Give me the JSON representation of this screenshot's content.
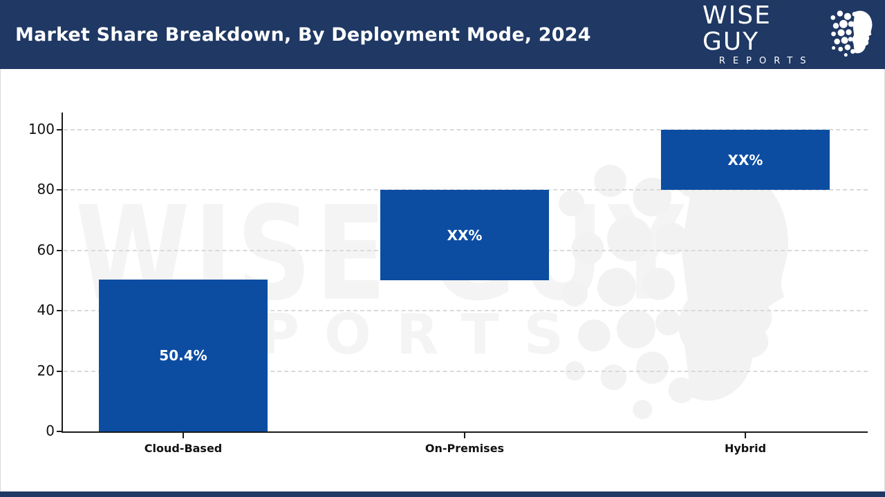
{
  "header": {
    "title": "Market Share Breakdown, By Deployment Mode, 2024",
    "logo": {
      "line1": "WISE GUY",
      "line2": "REPORTS",
      "face_icon": "dotted-head-profile"
    }
  },
  "watermark": {
    "line1": "WISE GUY",
    "line2": "REPORTS",
    "face_icon": "dotted-head-profile"
  },
  "chart_data": {
    "type": "bar",
    "variant": "floating-segment-waterfall",
    "title": "Market Share Breakdown, By Deployment Mode, 2024",
    "categories": [
      "Cloud-Based",
      "On-Premises",
      "Hybrid"
    ],
    "segments": [
      {
        "category": "Cloud-Based",
        "start": 0,
        "end": 50.4,
        "label": "50.4%"
      },
      {
        "category": "On-Premises",
        "start": 50,
        "end": 80,
        "label": "XX%"
      },
      {
        "category": "Hybrid",
        "start": 80,
        "end": 100,
        "label": "XX%"
      }
    ],
    "yticks": [
      0,
      20,
      40,
      60,
      80,
      100
    ],
    "ylim": [
      0,
      105
    ],
    "xlabel": "",
    "ylabel": "",
    "grid": "horizontal-dashed",
    "legend": "none",
    "bar_color": "#0c4da2",
    "bar_label_color": "#ffffff",
    "gridline_color": "#d9d9d9",
    "axis_color": "#1a1a1a",
    "header_color": "#1f3864"
  }
}
